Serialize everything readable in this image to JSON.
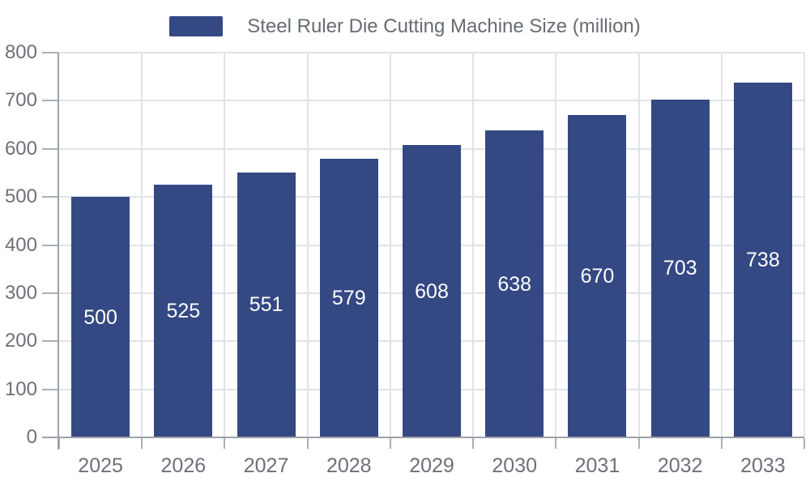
{
  "chart_data": {
    "type": "bar",
    "title": "",
    "legend": "Steel Ruler Die Cutting Machine Size (million)",
    "legend_position": "top-center",
    "categories": [
      "2025",
      "2026",
      "2027",
      "2028",
      "2029",
      "2030",
      "2031",
      "2032",
      "2033"
    ],
    "values": [
      500,
      525,
      551,
      579,
      608,
      638,
      670,
      703,
      738
    ],
    "xlabel": "",
    "ylabel": "",
    "ylim": [
      0,
      800
    ],
    "yticks": [
      0,
      100,
      200,
      300,
      400,
      500,
      600,
      700,
      800
    ],
    "grid": true,
    "bar_label_position": "inside-center",
    "colors": {
      "bar": "#344983",
      "bar_label": "#ffffff",
      "axis_label": "#6e7079",
      "axis_line": "#9da1a8",
      "tick": "#aab0b6",
      "gridline": "#e0e3e8",
      "legend_text": "#676b72",
      "background": "#ffffff"
    }
  }
}
